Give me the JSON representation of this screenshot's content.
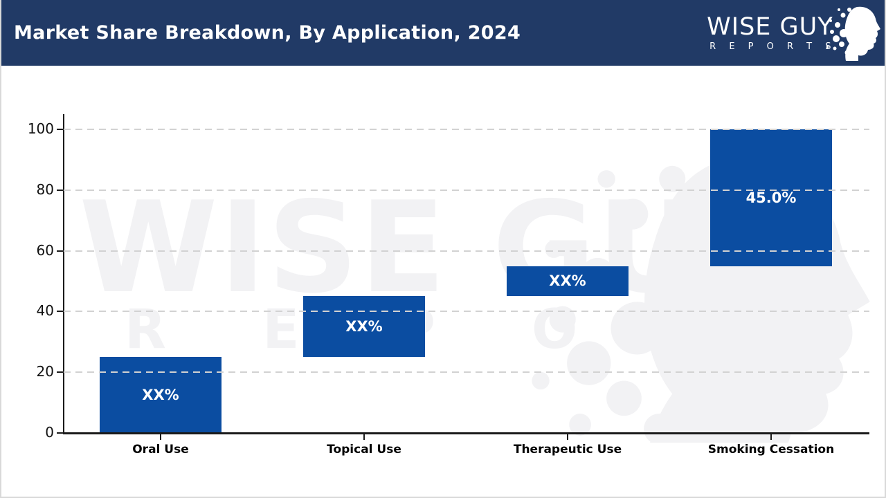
{
  "header": {
    "title": "Market Share Breakdown, By Application, 2024",
    "bg_color": "#213a66",
    "logo": {
      "line1": "WISE GUY",
      "line2": "R E P O R T S"
    }
  },
  "watermark": {
    "line1": "WISE GUY",
    "line2": "R E P O R T S"
  },
  "chart_data": {
    "type": "bar",
    "subtype": "floating-waterfall-segments",
    "title": "Market Share Breakdown, By Application, 2024",
    "categories": [
      "Oral Use",
      "Topical Use",
      "Therapeutic Use",
      "Smoking Cessation"
    ],
    "segments": [
      {
        "category": "Oral Use",
        "start": 0,
        "end": 25,
        "label": "XX%"
      },
      {
        "category": "Topical Use",
        "start": 25,
        "end": 45,
        "label": "XX%"
      },
      {
        "category": "Therapeutic Use",
        "start": 45,
        "end": 55,
        "label": "XX%"
      },
      {
        "category": "Smoking Cessation",
        "start": 55,
        "end": 100,
        "label": "45.0%"
      }
    ],
    "xlabel": "",
    "ylabel": "",
    "ylim": [
      0,
      105
    ],
    "yticks": [
      0,
      20,
      40,
      60,
      80,
      100
    ],
    "grid": "dashed horizontal gridlines drawn over bars",
    "legend": "none",
    "bar_color": "#0b4da1",
    "bar_label_color": "#ffffff",
    "grid_color": "#d2d2d2",
    "axis_color": "#1a1a1a"
  }
}
